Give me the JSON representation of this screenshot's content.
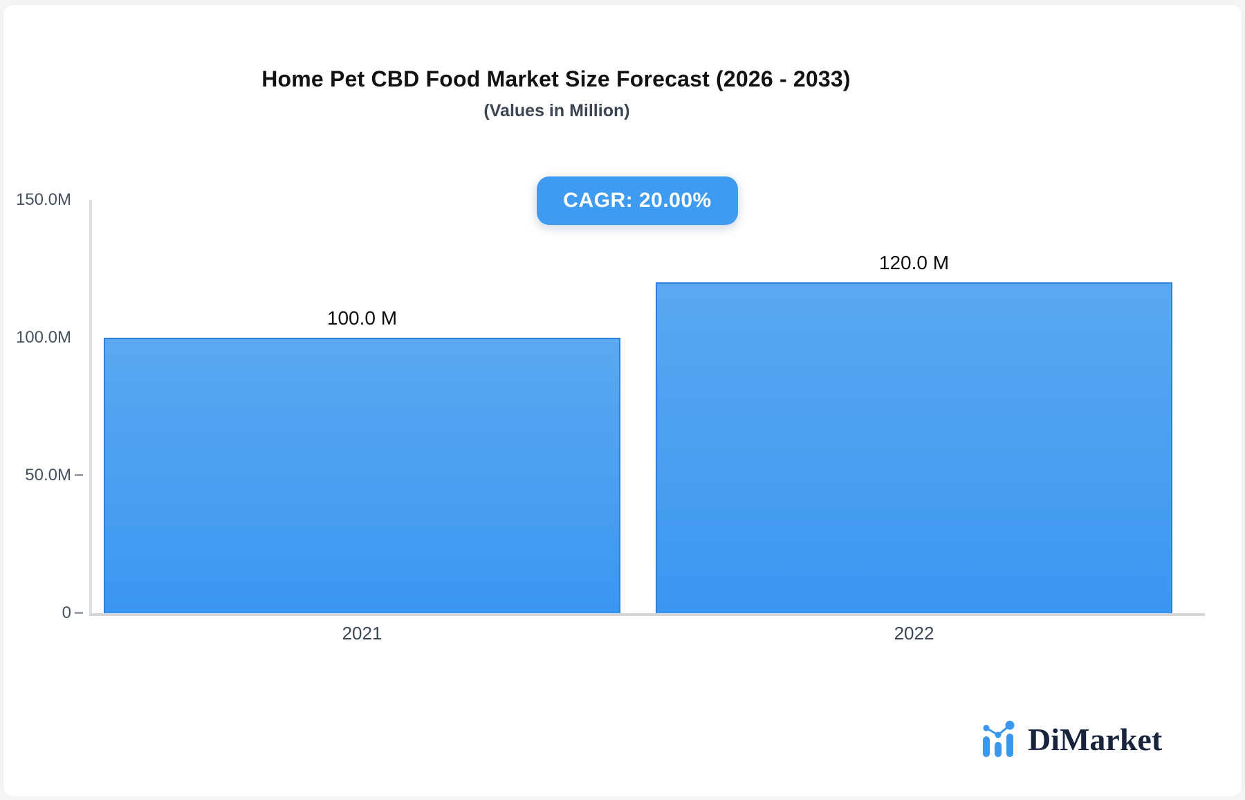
{
  "page": {
    "background_color": "#f3f4f6",
    "card_color": "#ffffff"
  },
  "header": {
    "title": "Home Pet CBD Food Market Size Forecast (2026 - 2033)",
    "subtitle": "(Values in Million)",
    "cagr_badge": "CAGR: 20.00%",
    "cagr_badge_color": "#3e9bef"
  },
  "chart_data": {
    "type": "bar",
    "title": "Home Pet CBD Food Market Size Forecast (2026 - 2033)",
    "subtitle": "(Values in Million)",
    "unit": "Million",
    "cagr_percent": 20.0,
    "categories": [
      "2021",
      "2022"
    ],
    "values": [
      100.0,
      120.0
    ],
    "value_labels": [
      "100.0 M",
      "120.0 M"
    ],
    "xlabel": "",
    "ylabel": "",
    "ylim": [
      0,
      150
    ],
    "yticks": [
      {
        "value": 0,
        "label": "0",
        "dash": true
      },
      {
        "value": 50,
        "label": "50.0M",
        "dash": true
      },
      {
        "value": 100,
        "label": "100.0M",
        "dash": false
      },
      {
        "value": 150,
        "label": "150.0M",
        "dash": false
      }
    ],
    "grid": false,
    "legend": false,
    "bar_gradient_top": "#5aa9f1",
    "bar_gradient_bottom": "#3b96f1",
    "bar_border_color": "#2c80d9"
  },
  "footer": {
    "logo_text": "DiMarket",
    "logo_text_color": "#18243c",
    "logo_icon": "bar-chart-icon",
    "logo_icon_color": "#3b96ee"
  }
}
